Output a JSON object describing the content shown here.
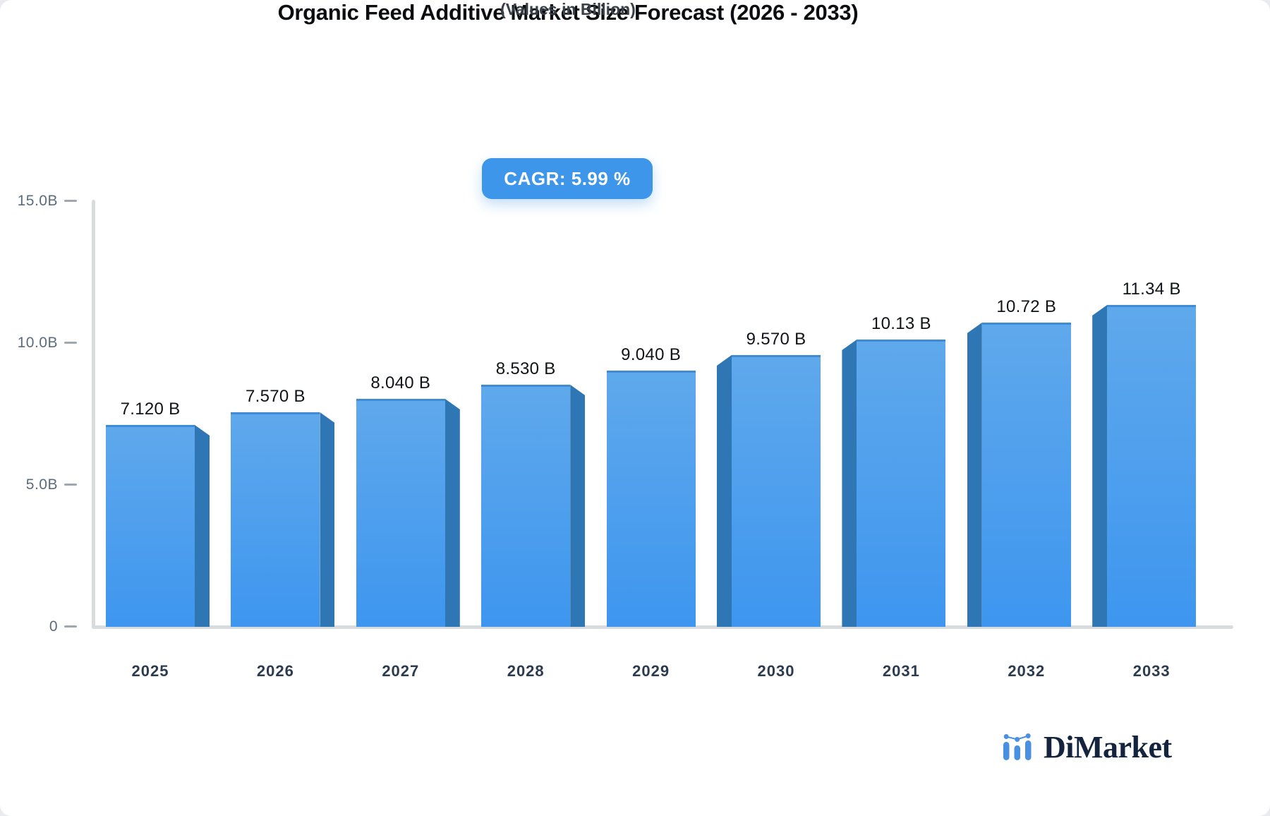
{
  "header": {
    "title": "Organic Feed Additive Market Size Forecast (2026 - 2033)",
    "subtitle": "(Values in Billion)",
    "cagr_badge": "CAGR: 5.99 %"
  },
  "chart_data": {
    "type": "bar",
    "title": "Organic Feed Additive Market Size Forecast (2026 - 2033)",
    "subtitle": "(Values in Billion)",
    "cagr_text": "CAGR: 5.99 %",
    "categories": [
      "2025",
      "2026",
      "2027",
      "2028",
      "2029",
      "2030",
      "2031",
      "2032",
      "2033"
    ],
    "values": [
      7.12,
      7.57,
      8.04,
      8.53,
      9.04,
      9.57,
      10.13,
      10.72,
      11.34
    ],
    "value_labels": [
      "7.120 B",
      "7.570 B",
      "8.040 B",
      "8.530 B",
      "9.040 B",
      "9.570 B",
      "10.13 B",
      "10.72 B",
      "11.34 B"
    ],
    "ylim": [
      0,
      15
    ],
    "y_ticks": [
      {
        "value": 0,
        "label": "0"
      },
      {
        "value": 5,
        "label": "5.0B"
      },
      {
        "value": 10,
        "label": "10.0B"
      },
      {
        "value": 15,
        "label": "15.0B"
      }
    ],
    "xlabel": "",
    "ylabel": "",
    "grid": false,
    "legend": false
  },
  "colors": {
    "bar_face_top": "#5FA8EC",
    "bar_face_bottom": "#3E96EF",
    "bar_face_edge": "#3F8BD4",
    "bar_side": "#2E76B4",
    "badge_bg": "#3D96EA",
    "badge_text": "#FFFFFF",
    "axis_line": "#D9DCDF",
    "tick_dash": "#9FA8B1",
    "y_label": "#5B6C7C",
    "x_label": "#2C3C50",
    "value_label": "#101317",
    "title": "#0B0D10",
    "subtitle": "#394049",
    "logo_text": "#15243E",
    "logo_icon": "#4A90E2",
    "page_background": "#E9EBEE",
    "card_background": "#FFFFFF"
  },
  "logo": {
    "text": "DiMarket"
  }
}
